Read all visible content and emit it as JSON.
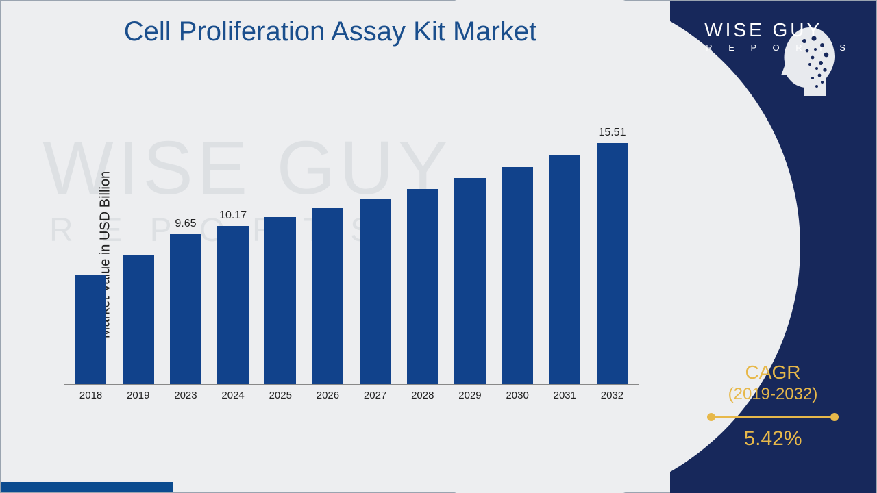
{
  "title": "Cell Proliferation Assay Kit Market",
  "brand": {
    "main": "WISE GUY",
    "sub": "R E P O R T S"
  },
  "watermark": {
    "main": "WISE GUY",
    "sub": "REPORTS"
  },
  "cagr": {
    "label": "CAGR",
    "period": "(2019-2032)",
    "value": "5.42%",
    "accent_color": "#e7b84a"
  },
  "chart": {
    "type": "bar",
    "y_label": "Market Value in USD Billion",
    "y_max": 18,
    "bar_color": "#11428b",
    "background_color": "#edeef0",
    "panel_color": "#17285b",
    "bar_width_pct": 66,
    "categories": [
      "2018",
      "2019",
      "2023",
      "2024",
      "2025",
      "2026",
      "2027",
      "2028",
      "2029",
      "2030",
      "2031",
      "2032"
    ],
    "values": [
      7.0,
      8.3,
      9.65,
      10.17,
      10.72,
      11.3,
      11.91,
      12.55,
      13.23,
      13.95,
      14.7,
      15.51
    ],
    "value_labels": {
      "2": "9.65",
      "3": "10.17",
      "11": "15.51"
    },
    "label_fontsize": 16,
    "tick_fontsize": 15
  }
}
